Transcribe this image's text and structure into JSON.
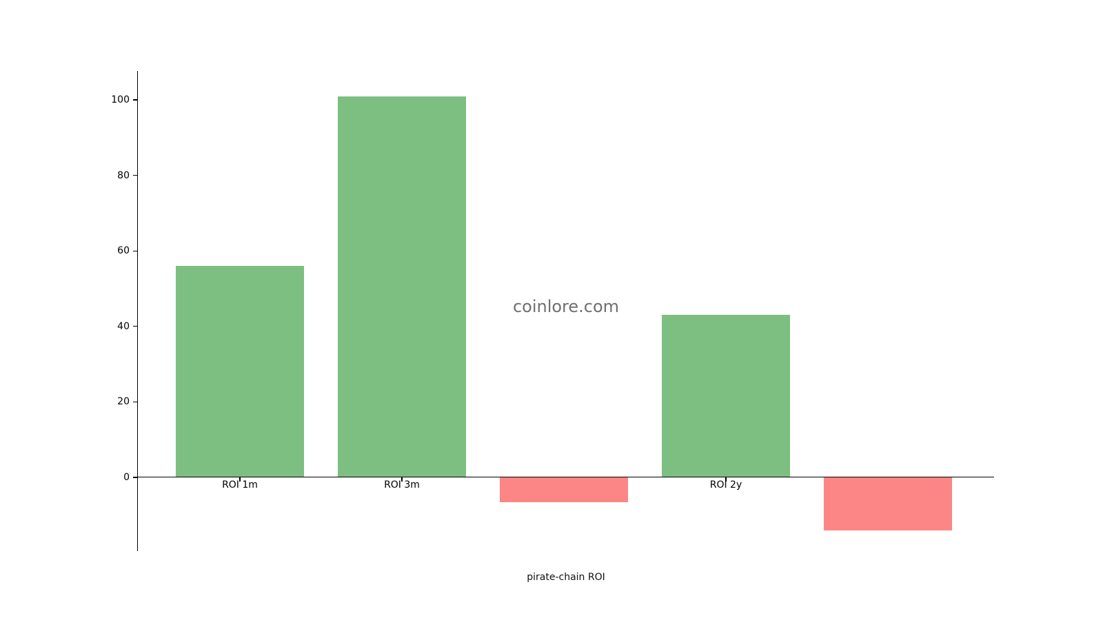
{
  "chart_data": {
    "type": "bar",
    "title": "pirate-chain ROI",
    "watermark": "coinlore.com",
    "categories": [
      "ROI 1m",
      "ROI 3m",
      "",
      "ROI 2y",
      ""
    ],
    "values": [
      56,
      101,
      -6.5,
      43,
      -14
    ],
    "bar_colors": [
      "#7cbf80",
      "#7cbf80",
      "#fc8686",
      "#7cbf80",
      "#fc8686"
    ],
    "positive_color": "#7cbf80",
    "negative_color": "#fc8686",
    "y_ticks": [
      0,
      20,
      40,
      60,
      80,
      100
    ],
    "ylim": [
      -19.5,
      107.7
    ],
    "xlabel": "",
    "ylabel": "",
    "grid": false,
    "legend": null,
    "note": "x labels of the two negative (red) bars are hidden behind the bars"
  }
}
